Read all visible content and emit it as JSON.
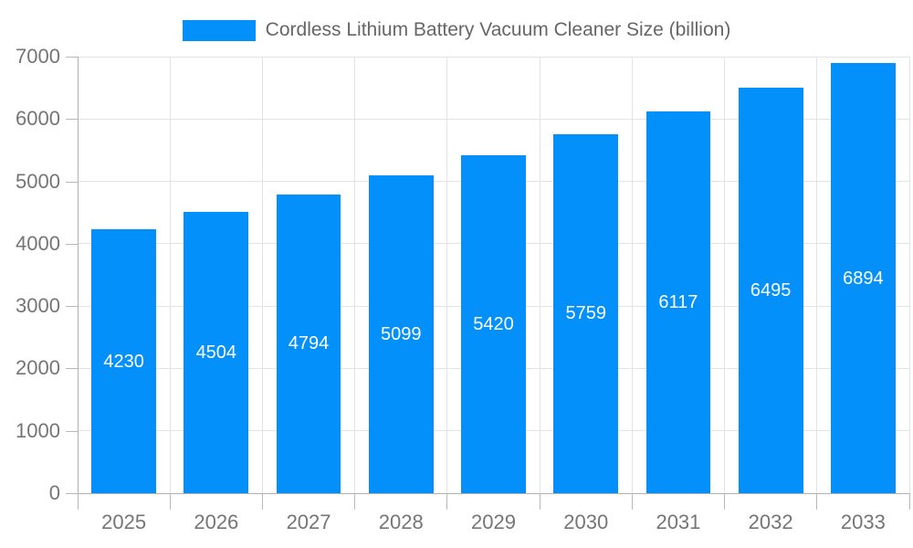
{
  "chart": {
    "legend_label": "Cordless Lithium Battery Vacuum Cleaner Size (billion)"
  },
  "chart_data": {
    "type": "bar",
    "title": "",
    "xlabel": "",
    "ylabel": "",
    "series_name": "Cordless Lithium Battery Vacuum Cleaner Size (billion)",
    "categories": [
      "2025",
      "2026",
      "2027",
      "2028",
      "2029",
      "2030",
      "2031",
      "2032",
      "2033"
    ],
    "values": [
      4230,
      4504,
      4794,
      5099,
      5420,
      5759,
      6117,
      6495,
      6894
    ],
    "value_labels": [
      "4230",
      "4504",
      "4794",
      "5099",
      "5420",
      "5759",
      "6117",
      "6495",
      "6894"
    ],
    "ylim": [
      0,
      7000
    ],
    "yticks": [
      0,
      1000,
      2000,
      3000,
      4000,
      5000,
      6000,
      7000
    ],
    "ytick_labels": [
      "0",
      "1000",
      "2000",
      "3000",
      "4000",
      "5000",
      "6000",
      "7000"
    ],
    "grid": true,
    "legend_position": "top",
    "colors": {
      "bar": "#0490FB",
      "grid_line": "#e3e3e3",
      "axis_line": "#b0b0b0",
      "tick": "#b8b8b8",
      "axis_text": "#757575",
      "legend_text": "#666666",
      "value_label_text": "#ffffff"
    }
  }
}
